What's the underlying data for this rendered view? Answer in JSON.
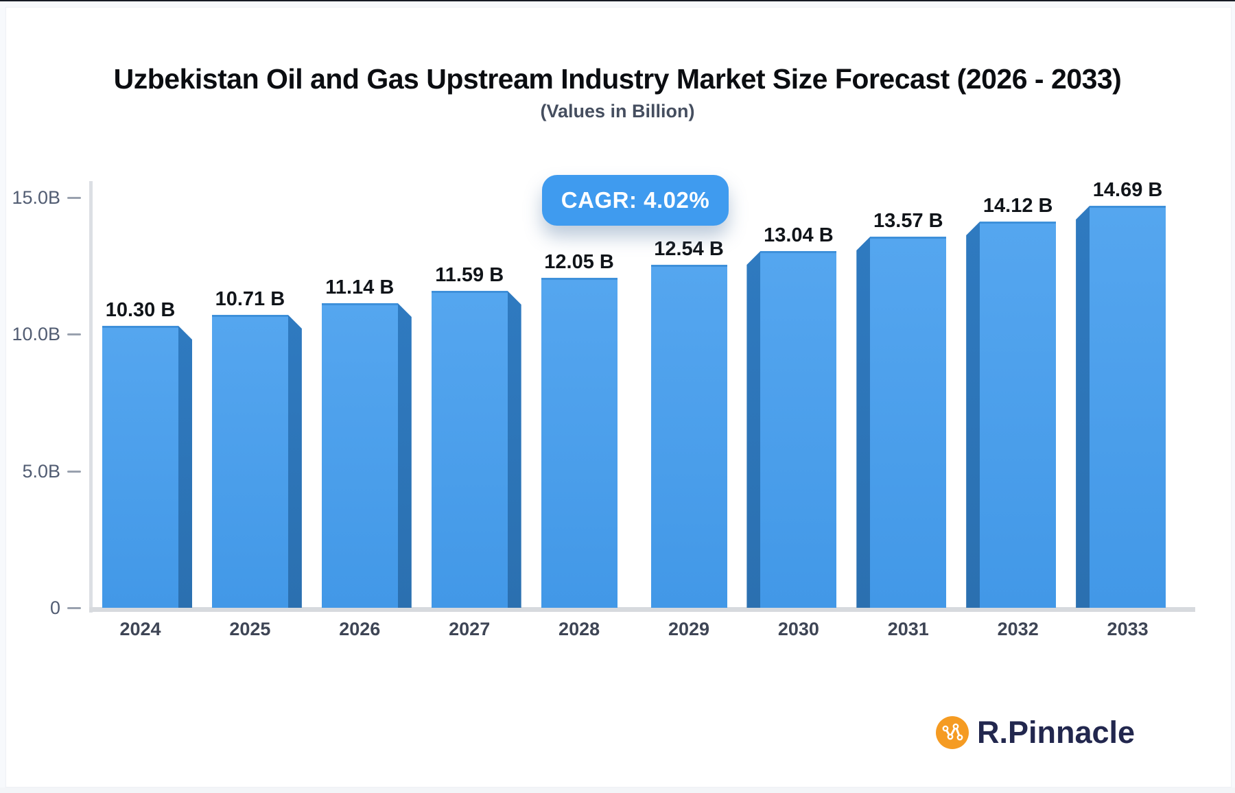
{
  "chart_data": {
    "type": "bar",
    "title": "Uzbekistan Oil and Gas Upstream Industry Market Size Forecast (2026 - 2033)",
    "subtitle": "(Values in Billion)",
    "unit": "billion USD",
    "categories": [
      "2024",
      "2025",
      "2026",
      "2027",
      "2028",
      "2029",
      "2030",
      "2031",
      "2032",
      "2033"
    ],
    "values": [
      10.3,
      10.71,
      11.14,
      11.59,
      12.05,
      12.54,
      13.04,
      13.57,
      14.12,
      14.69
    ],
    "value_labels": [
      "10.30 B",
      "10.71 B",
      "11.14 B",
      "11.59 B",
      "12.05 B",
      "12.54 B",
      "13.04 B",
      "13.57 B",
      "14.12 B",
      "14.69 B"
    ],
    "cagr_label": "CAGR: 4.02%",
    "cagr_percent": 4.02,
    "y_ticks": [
      {
        "value": 15,
        "label": "15.0B"
      },
      {
        "value": 10,
        "label": "10.0B"
      },
      {
        "value": 5,
        "label": "5.0B"
      },
      {
        "value": 0,
        "label": "0"
      }
    ],
    "ylim": [
      0,
      15
    ],
    "grid": false,
    "legend": false,
    "style": "3d-extruded-bars-center-perspective",
    "colors": {
      "bar_face_top": "#55A6EF",
      "bar_face_bottom": "#4298E7",
      "bar_side": "#2E78BC",
      "bar_top_border": "#3E90DA",
      "badge_bg": "#3F9BEF",
      "badge_text": "#FFFFFF",
      "axis": "#D7DADE",
      "tick_dash": "#99A1AE",
      "y_label": "#515C72",
      "x_label": "#3E4555",
      "value_label": "#101419",
      "title": "#0B0D11",
      "subtitle": "#454E5F"
    }
  },
  "logo": {
    "text": "R.Pinnacle",
    "icon": "network-nodes-icon",
    "icon_bg": "#F59B22",
    "icon_glyph_color": "#FFFFFF",
    "text_color": "#22274E"
  }
}
